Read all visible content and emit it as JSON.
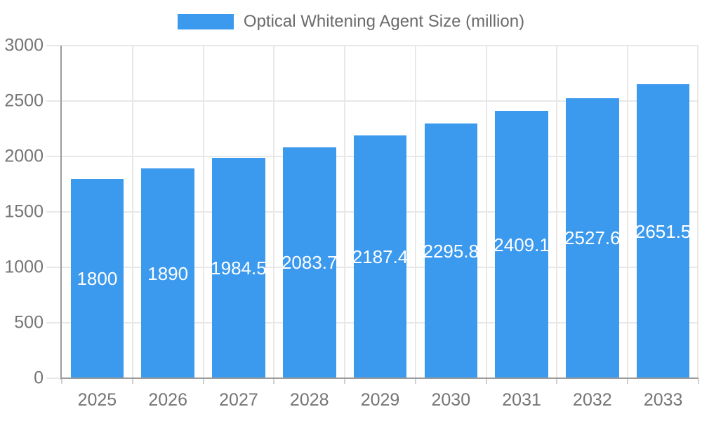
{
  "legend": {
    "label": "Optical Whitening Agent Size (million)"
  },
  "chart_data": {
    "type": "bar",
    "title": "",
    "xlabel": "",
    "ylabel": "",
    "categories": [
      "2025",
      "2026",
      "2027",
      "2028",
      "2029",
      "2030",
      "2031",
      "2032",
      "2033"
    ],
    "series": [
      {
        "name": "Optical Whitening Agent Size (million)",
        "values": [
          1800,
          1890,
          1984.5,
          2083.7,
          2187.4,
          2295.8,
          2409.1,
          2527.6,
          2651.5
        ]
      }
    ],
    "value_labels": [
      "1800",
      "1890",
      "1984.5",
      "2083.7",
      "2187.4",
      "2295.8",
      "2409.1",
      "2527.6",
      "2651.5"
    ],
    "ylim": [
      0,
      3000
    ],
    "ytick_step": 500,
    "ytick_labels": [
      "0",
      "500",
      "1000",
      "1500",
      "2000",
      "2500",
      "3000"
    ],
    "grid": true,
    "legend_position": "top"
  },
  "colors": {
    "bar": "#3B99EE",
    "grid": "#e8e8e8",
    "axis": "#9b9b9b",
    "tick_label": "#757575",
    "legend_text": "#6b6b6b",
    "value_label": "#ffffff",
    "background": "#ffffff"
  }
}
